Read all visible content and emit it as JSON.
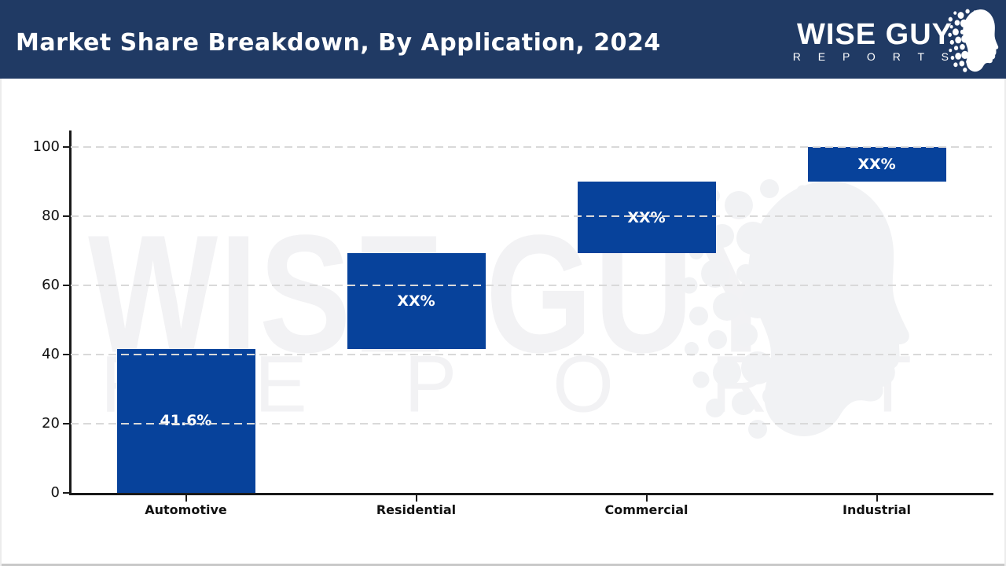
{
  "header": {
    "title": "Market Share Breakdown, By Application, 2024",
    "logo": {
      "name": "WISE GUY",
      "subtitle": "R E P O R T S"
    }
  },
  "watermark": {
    "line1": "WISE GUY",
    "line2": "R E P O R T S"
  },
  "colors": {
    "header_bg": "#203a64",
    "bar": "#07429b",
    "bar_label": "#ffffff",
    "grid": "#d9d9d9",
    "axis": "#1a1a1a",
    "watermark": "#f2f2f4"
  },
  "chart_data": {
    "type": "bar",
    "subtype": "waterfall",
    "title": "Market Share Breakdown, By Application, 2024",
    "categories": [
      "Automotive",
      "Residential",
      "Commercial",
      "Industrial"
    ],
    "segments": [
      {
        "category": "Automotive",
        "start": 0,
        "end": 41.6,
        "label": "41.6%"
      },
      {
        "category": "Residential",
        "start": 41.6,
        "end": 69.3,
        "label": "XX%"
      },
      {
        "category": "Commercial",
        "start": 69.3,
        "end": 90.0,
        "label": "XX%"
      },
      {
        "category": "Industrial",
        "start": 90.0,
        "end": 100.0,
        "label": "XX%"
      }
    ],
    "xlabel": "",
    "ylabel": "",
    "yticks": [
      0,
      20,
      40,
      60,
      80,
      100
    ],
    "ylim": [
      0,
      100
    ],
    "grid": "horizontal dashed",
    "legend": "none",
    "bar_color": "#07429b"
  }
}
